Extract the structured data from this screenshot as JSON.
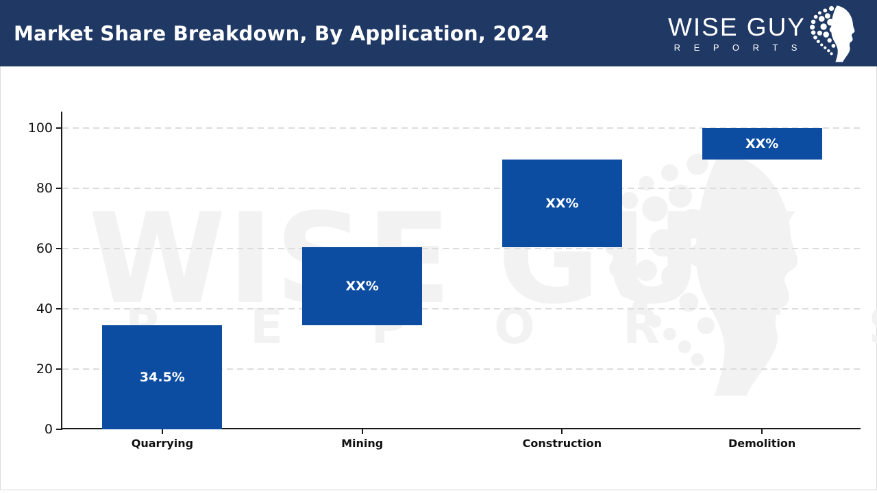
{
  "header": {
    "title": "Market Share Breakdown, By Application, 2024",
    "logo": {
      "line1": "WISE GUY",
      "line2": "R E P O R T S"
    }
  },
  "watermark": {
    "line1": "WISE GUY",
    "line2": "R E P O R T S"
  },
  "colors": {
    "header_bg": "#1f3864",
    "bar": "#0d4da1",
    "grid": "#dcdcdc",
    "axis": "#1a1a1a",
    "watermark": "#f2f2f2",
    "bar_label": "#ffffff"
  },
  "chart_data": {
    "type": "bar",
    "subtype": "waterfall",
    "title": "Market Share Breakdown, By Application, 2024",
    "categories": [
      "Quarrying",
      "Mining",
      "Construction",
      "Demolition"
    ],
    "segments": [
      {
        "category": "Quarrying",
        "start": 0,
        "end": 34.5,
        "label": "34.5%"
      },
      {
        "category": "Mining",
        "start": 34.5,
        "end": 60.5,
        "label": "XX%"
      },
      {
        "category": "Construction",
        "start": 60.5,
        "end": 89.5,
        "label": "XX%"
      },
      {
        "category": "Demolition",
        "start": 89.5,
        "end": 100,
        "label": "XX%"
      }
    ],
    "yticks": [
      0,
      20,
      40,
      60,
      80,
      100
    ],
    "ylim": [
      0,
      105.45
    ],
    "xlabel": "",
    "ylabel": "",
    "grid": "horizontal-dashed",
    "legend": "none"
  }
}
